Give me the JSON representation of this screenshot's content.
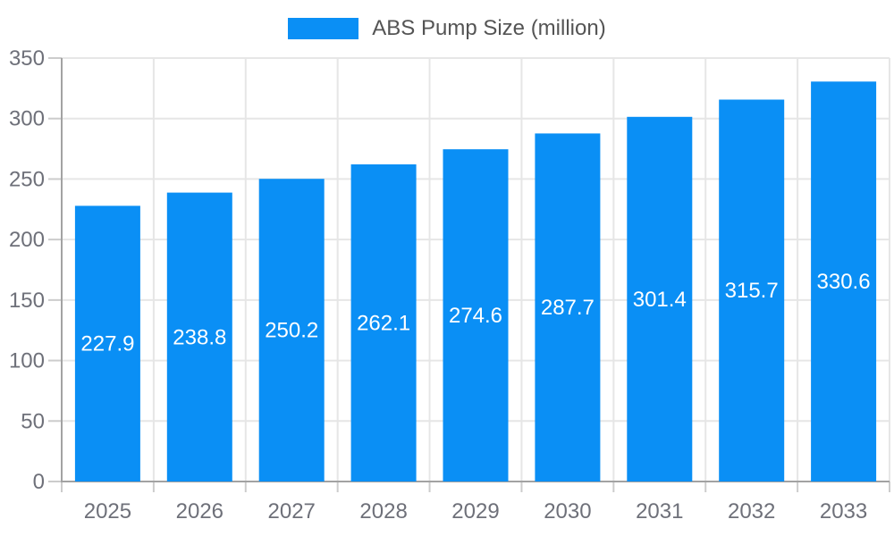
{
  "legend": {
    "label": "ABS Pump Size (million)"
  },
  "colors": {
    "bar": "#0A8FF5",
    "axis_line": "#A2A2A2",
    "grid_line": "#E6E6E6",
    "tick": "#CCCCCC",
    "axis_text": "#6E7079",
    "legend_text": "#545454",
    "value_text": "#FFFFFF",
    "background": "#FFFFFF"
  },
  "chart_data": {
    "type": "bar",
    "title": "",
    "categories": [
      "2025",
      "2026",
      "2027",
      "2028",
      "2029",
      "2030",
      "2031",
      "2032",
      "2033"
    ],
    "values": [
      227.9,
      238.8,
      250.2,
      262.1,
      274.6,
      287.7,
      301.4,
      315.7,
      330.6
    ],
    "series_name": "ABS Pump Size (million)",
    "xlabel": "",
    "ylabel": "",
    "ylim": [
      0,
      350
    ],
    "ytick_step": 50,
    "ytick_labels": [
      "0",
      "50",
      "100",
      "150",
      "200",
      "250",
      "300",
      "350"
    ],
    "grid": true,
    "legend_position": "top-center",
    "value_label_position": "inside-center",
    "value_label_decimals": 1
  }
}
